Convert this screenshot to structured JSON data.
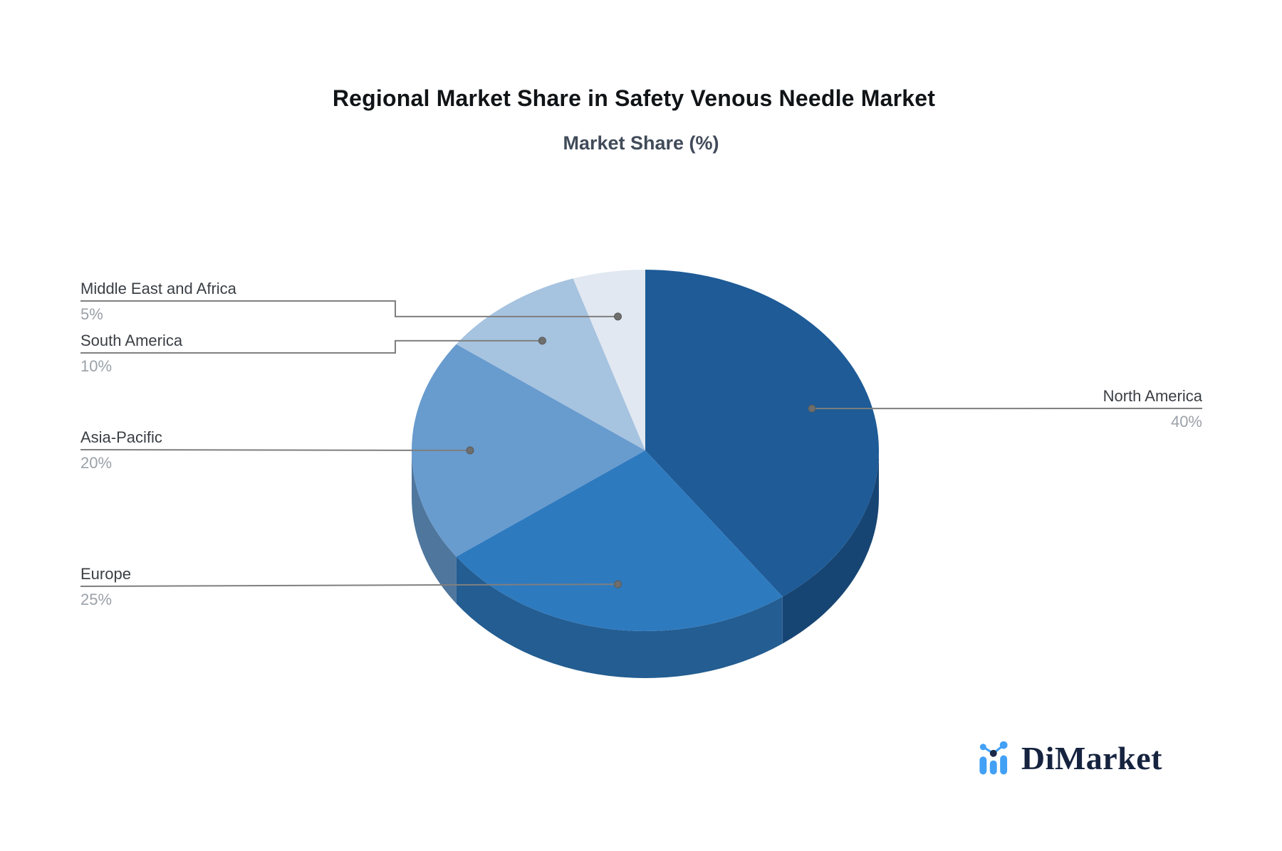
{
  "header": {
    "title": "Regional Market Share in Safety Venous Needle Market",
    "subtitle": "Market Share (%)"
  },
  "chart_data": {
    "type": "pie",
    "effect": "3d",
    "title": "Regional Market Share in Safety Venous Needle Market",
    "subtitle": "Market Share (%)",
    "unit": "%",
    "start_angle_deg": 0,
    "direction": "clockwise",
    "legend_position": "callout-labels",
    "categories": [
      "North America",
      "Europe",
      "Asia-Pacific",
      "South America",
      "Middle East and Africa"
    ],
    "values": [
      40,
      25,
      20,
      10,
      5
    ],
    "slices": [
      {
        "label": "North America",
        "value": 40,
        "display": "40%",
        "color": "#1e5b97"
      },
      {
        "label": "Europe",
        "value": 25,
        "display": "25%",
        "color": "#2e7abf"
      },
      {
        "label": "Asia-Pacific",
        "value": 20,
        "display": "20%",
        "color": "#689bce"
      },
      {
        "label": "South America",
        "value": 10,
        "display": "10%",
        "color": "#a6c3e0"
      },
      {
        "label": "Middle East and Africa",
        "value": 5,
        "display": "5%",
        "color": "#e1e8f1"
      }
    ]
  },
  "branding": {
    "logo_text": "DiMarket",
    "logo_icon": "bar-line-chart-icon",
    "logo_text_color": "#16233f",
    "logo_accent_color": "#42a0f5"
  },
  "colors": {
    "background": "#ffffff",
    "title_text": "#111417",
    "subtitle_text": "#414b59",
    "label_text": "#3a3f45",
    "percent_text": "#9aa1a8",
    "leader_line": "#7f7f7f",
    "leader_dot": "#6e6e6e"
  }
}
